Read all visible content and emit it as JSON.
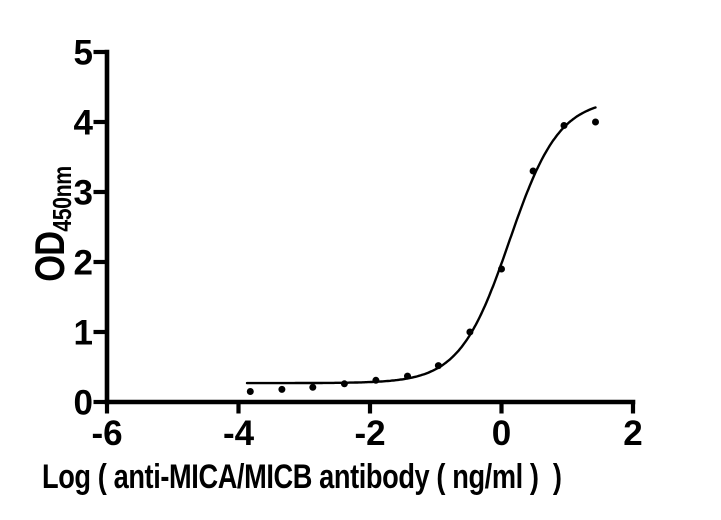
{
  "chart_data": {
    "type": "scatter",
    "title": "",
    "xlabel": "Log ( anti-MICA/MICB antibody ( ng/ml )  )",
    "ylabel_main": "OD",
    "ylabel_sub": "450nm",
    "xlim": [
      -6,
      2
    ],
    "ylim": [
      0,
      5
    ],
    "x_ticks": [
      "-6",
      "-4",
      "-2",
      "0",
      "2"
    ],
    "x_tick_values": [
      -6,
      -4,
      -2,
      0,
      2
    ],
    "y_ticks": [
      "0",
      "1",
      "2",
      "3",
      "4",
      "5"
    ],
    "y_tick_values": [
      0,
      1,
      2,
      3,
      4,
      5
    ],
    "grid": false,
    "legend": "none",
    "series": [
      {
        "name": "data-points",
        "type": "scatter",
        "marker": "filled-circle",
        "marker_radius": 3.5,
        "color": "#000000",
        "x": [
          -3.82,
          -3.34,
          -2.87,
          -2.39,
          -1.91,
          -1.43,
          -0.96,
          -0.48,
          0.0,
          0.48,
          0.95,
          1.43
        ],
        "y": [
          0.15,
          0.18,
          0.21,
          0.26,
          0.31,
          0.37,
          0.52,
          1.0,
          1.9,
          3.3,
          3.95,
          4.0
        ]
      },
      {
        "name": "fit-curve",
        "type": "line",
        "color": "#000000",
        "fit": {
          "model": "4PL",
          "bottom": 0.27,
          "top": 4.33,
          "logEC50": 0.12,
          "hillslope": 1.15,
          "x_start": -3.87,
          "x_end": 1.44
        }
      }
    ],
    "colors": {
      "axis": "#000000",
      "background": "#ffffff"
    }
  }
}
